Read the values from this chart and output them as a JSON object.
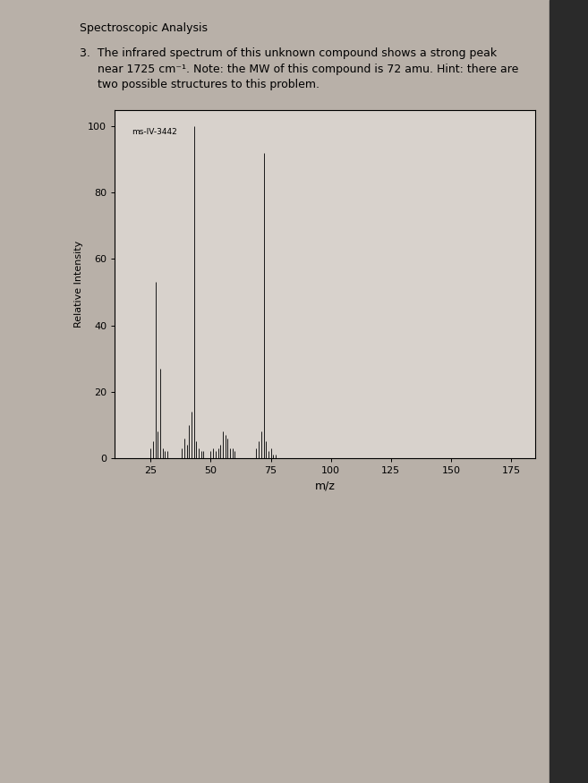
{
  "title": "Spectroscopic Analysis",
  "question_text_line1": "3.  The infrared spectrum of this unknown compound shows a strong peak",
  "question_text_line2": "     near 1725 cm⁻¹. Note: the MW of this compound is 72 amu. Hint: there are",
  "question_text_line3": "     two possible structures to this problem.",
  "spectrum_label": "ms-IV-3442",
  "xlabel": "m/z",
  "ylabel": "Relative Intensity",
  "xlim": [
    10,
    185
  ],
  "ylim": [
    0,
    105
  ],
  "xticks": [
    25,
    50,
    75,
    100,
    125,
    150,
    175
  ],
  "yticks": [
    0,
    20,
    40,
    60,
    80,
    100
  ],
  "page_bg_color": "#b8b0a8",
  "plot_bg_color": "#d8d2cc",
  "right_strip_color": "#2a2a2a",
  "peaks": {
    "25": 3,
    "26": 5,
    "27": 53,
    "28": 8,
    "29": 27,
    "30": 3,
    "31": 2,
    "32": 2,
    "38": 3,
    "39": 6,
    "40": 4,
    "41": 10,
    "42": 14,
    "43": 100,
    "44": 5,
    "45": 3,
    "46": 2,
    "47": 2,
    "50": 2,
    "51": 3,
    "52": 2,
    "53": 3,
    "54": 4,
    "55": 8,
    "56": 7,
    "57": 6,
    "58": 3,
    "59": 3,
    "60": 2,
    "69": 3,
    "70": 5,
    "71": 8,
    "72": 92,
    "73": 5,
    "74": 2,
    "75": 3,
    "76": 1,
    "77": 1
  }
}
